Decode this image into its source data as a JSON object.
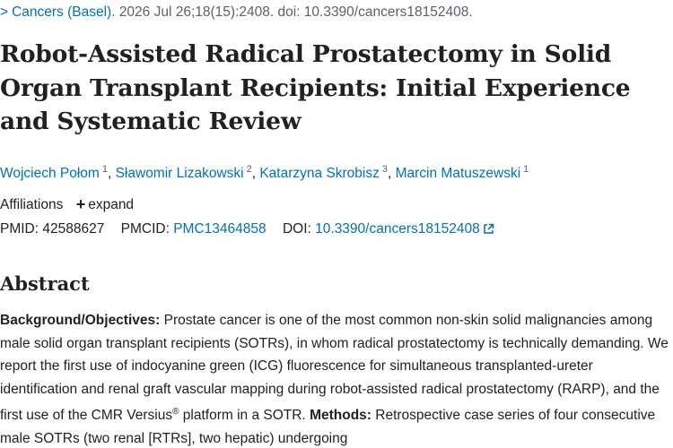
{
  "citation": {
    "journal": "Cancers (Basel).",
    "details": "2026 Jul 26;18(15):2408. doi: 10.3390/cancers18152408."
  },
  "article": {
    "title": "Robot-Assisted Radical Prostatectomy in Solid Organ Transplant Recipients: Initial Experience and Systematic Review"
  },
  "authors": [
    {
      "name": "Wojciech Połom",
      "sup": "1"
    },
    {
      "name": "Sławomir Lizakowski",
      "sup": "2"
    },
    {
      "name": "Katarzyna Skrobisz",
      "sup": "3"
    },
    {
      "name": "Marcin Matuszewski",
      "sup": "1"
    }
  ],
  "affiliations": {
    "label": "Affiliations",
    "expand_label": "expand"
  },
  "identifiers": {
    "pmid_label": "PMID:",
    "pmid": "42588627",
    "pmcid_label": "PMCID:",
    "pmcid": "PMC13464858",
    "doi_label": "DOI:",
    "doi": "10.3390/cancers18152408"
  },
  "abstract": {
    "heading": "Abstract",
    "background_label": "Background/Objectives:",
    "background_text_1": "Prostate cancer is one of the most common non-skin solid malignancies among male solid organ transplant recipients (SOTRs), in whom radical prostatectomy is technically demanding. We report the first use of indocyanine green (ICG) fluorescence for simultaneous transplanted-ureter identification and renal graft vascular mapping during robot-assisted radical prostatectomy (RARP), and the first use of the CMR Versius",
    "registered": "®",
    "background_text_2": "platform in a SOTR.",
    "methods_label": "Methods:",
    "methods_text": "Retrospective case series of four consecutive male SOTRs (two renal [RTRs], two hepatic) undergoing"
  },
  "colors": {
    "link": "#0071bc",
    "text": "#212121",
    "muted": "#5b616b"
  }
}
